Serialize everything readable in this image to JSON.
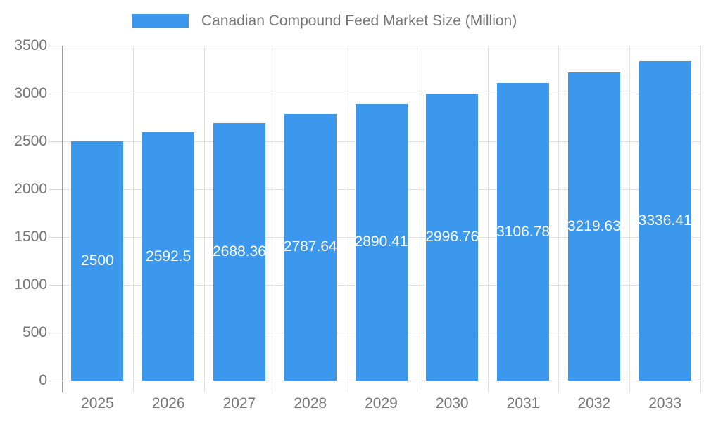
{
  "legend": {
    "label": "Canadian Compound Feed Market Size (Million)"
  },
  "colors": {
    "bar": "#3B98EC",
    "axis_text": "#757575",
    "bar_label_text": "#FFFFFF",
    "grid_line": "#E0E0E0",
    "tick_line": "#D6D6D6",
    "axis_line": "#9B9B9B",
    "background": "#FFFFFF"
  },
  "chart_data": {
    "type": "bar",
    "title": "Canadian Compound Feed Market Size (Million)",
    "categories": [
      "2025",
      "2026",
      "2027",
      "2028",
      "2029",
      "2030",
      "2031",
      "2032",
      "2033"
    ],
    "series": [
      {
        "name": "Canadian Compound Feed Market Size (Million)",
        "values": [
          2500,
          2592.5,
          2688.36,
          2787.64,
          2890.41,
          2996.76,
          3106.78,
          3219.63,
          3336.41
        ]
      }
    ],
    "value_labels": [
      "2500",
      "2592.5",
      "2688.36",
      "2787.64",
      "2890.41",
      "2996.76",
      "3106.78",
      "3219.63",
      "3336.41"
    ],
    "xlabel": "",
    "ylabel": "",
    "ylim": [
      0,
      3500
    ],
    "ytick_step": 500,
    "ytick_labels": [
      "0",
      "500",
      "1000",
      "1500",
      "2000",
      "2500",
      "3000",
      "3500"
    ],
    "grid": true,
    "legend_position": "top"
  }
}
